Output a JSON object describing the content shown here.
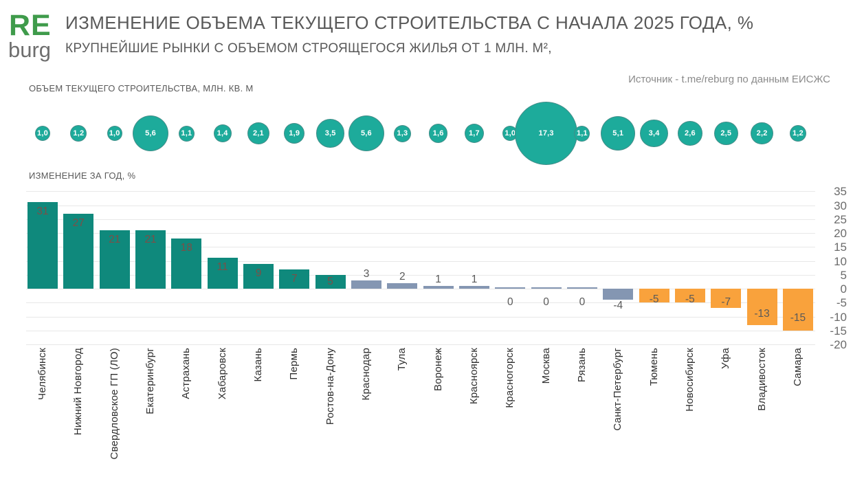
{
  "logo": {
    "line1": "RE",
    "line2": "burg"
  },
  "header": {
    "title": "ИЗМЕНЕНИЕ ОБЪЕМА ТЕКУЩЕГО СТРОИТЕЛЬСТВА С НАЧАЛА 2025 ГОДА, %",
    "subtitle": "КРУПНЕЙШИЕ РЫНКИ С ОБЪЕМОМ СТРОЯЩЕГОСЯ ЖИЛЬЯ ОТ 1 МЛН. М²,",
    "source": "Источник - t.me/reburg по данным ЕИСЖС"
  },
  "bubble_section": {
    "label": "ОБЪЕМ ТЕКУЩЕГО СТРОИТЕЛЬСТВА, МЛН. КВ. М"
  },
  "bar_section": {
    "label": "ИЗМЕНЕНИЕ ЗА ГОД, %"
  },
  "colors": {
    "logo_green": "#3f9b4b",
    "logo_gray": "#6e6e6e",
    "teal_bar": "#0f897c",
    "bubble_fill": "#1dab9b",
    "gray_bar": "#8496b2",
    "orange_bar": "#f9a23c",
    "teal_bar_label": "#7c4f47",
    "neutral_label": "#595959",
    "grid": "#e8e8e8"
  },
  "chart_data": {
    "type": "bar",
    "title": "ИЗМЕНЕНИЕ ОБЪЕМА ТЕКУЩЕГО СТРОИТЕЛЬСТВА С НАЧАЛА 2025 ГОДА, %",
    "subtitle": "КРУПНЕЙШИЕ РЫНКИ С ОБЪЕМОМ СТРОЯЩЕГОСЯ ЖИЛЬЯ ОТ 1 МЛН. М²,",
    "categories": [
      "Челябинск",
      "Нижний Новгород",
      "Свердловское ГП (ЛО)",
      "Екатеринбург",
      "Астрахань",
      "Хабаровск",
      "Казань",
      "Пермь",
      "Ростов-на-Дону",
      "Краснодар",
      "Тула",
      "Воронеж",
      "Красноярск",
      "Красногорск",
      "Москва",
      "Рязань",
      "Санкт-Петербург",
      "Тюмень",
      "Новосибирск",
      "Уфа",
      "Владивосток",
      "Самара"
    ],
    "series": [
      {
        "name": "ОБЪЕМ ТЕКУЩЕГО СТРОИТЕЛЬСТВА, МЛН. КВ. М",
        "type": "bubble",
        "values": [
          1.0,
          1.2,
          1.0,
          5.6,
          1.1,
          1.4,
          2.1,
          1.9,
          3.5,
          5.6,
          1.3,
          1.6,
          1.7,
          1.0,
          17.3,
          1.1,
          5.1,
          3.4,
          2.6,
          2.5,
          2.2,
          1.2
        ],
        "labels": [
          "1,0",
          "1,2",
          "1,0",
          "5,6",
          "1,1",
          "1,4",
          "2,1",
          "1,9",
          "3,5",
          "5,6",
          "1,3",
          "1,6",
          "1,7",
          "1,0",
          "17,3",
          "1,1",
          "5,1",
          "3,4",
          "2,6",
          "2,5",
          "2,2",
          "1,2"
        ]
      },
      {
        "name": "ИЗМЕНЕНИЕ ЗА ГОД, %",
        "type": "bar",
        "values": [
          31,
          27,
          21,
          21,
          18,
          11,
          9,
          7,
          5,
          3,
          2,
          1,
          1,
          0,
          0,
          0,
          -4,
          -5,
          -5,
          -7,
          -13,
          -15
        ]
      }
    ],
    "ylim": [
      -20,
      35
    ],
    "yticks": [
      35,
      30,
      25,
      20,
      15,
      10,
      5,
      0,
      -5,
      -10,
      -15,
      -20
    ],
    "grid": "horizontal",
    "legend": "none",
    "color_rule": "teal if change >= 5, gray-blue if -4..3, orange if <= -5"
  }
}
